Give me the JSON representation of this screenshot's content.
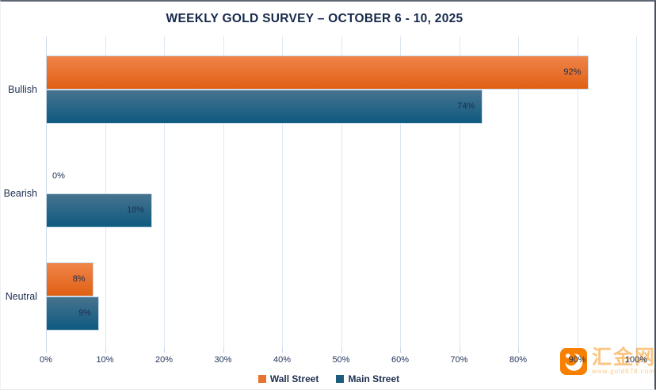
{
  "title": "WEEKLY GOLD SURVEY – OCTOBER 6 - 10, 2025",
  "chart_data": {
    "type": "bar",
    "orientation": "horizontal",
    "title": "WEEKLY GOLD SURVEY – OCTOBER 6 - 10, 2025",
    "categories": [
      "Bullish",
      "Bearish",
      "Neutral"
    ],
    "series": [
      {
        "name": "Wall Street",
        "values": [
          92,
          0,
          8
        ],
        "color_top": "#f08449",
        "color_bottom": "#e06014",
        "legend_color": "#e8732e"
      },
      {
        "name": "Main Street",
        "values": [
          74,
          18,
          9
        ],
        "color_top": "#47738f",
        "color_bottom": "#0e5a80",
        "legend_color": "#1e5c7e"
      }
    ],
    "value_suffix": "%",
    "xlim": [
      0,
      100
    ],
    "x_ticks": [
      "0%",
      "10%",
      "20%",
      "30%",
      "40%",
      "50%",
      "60%",
      "70%",
      "80%",
      "90%",
      "100%"
    ],
    "grid": true,
    "gridline_color": "#dde7f3",
    "legend_position": "bottom",
    "data_labels": [
      "92%",
      "0%",
      "8%",
      "74%",
      "18%",
      "9%"
    ]
  },
  "watermark": {
    "site_name": "汇金网",
    "site_url": "www.gold678.com",
    "icon": "huijin-crescent-logo",
    "accent_color": "#f88000"
  }
}
